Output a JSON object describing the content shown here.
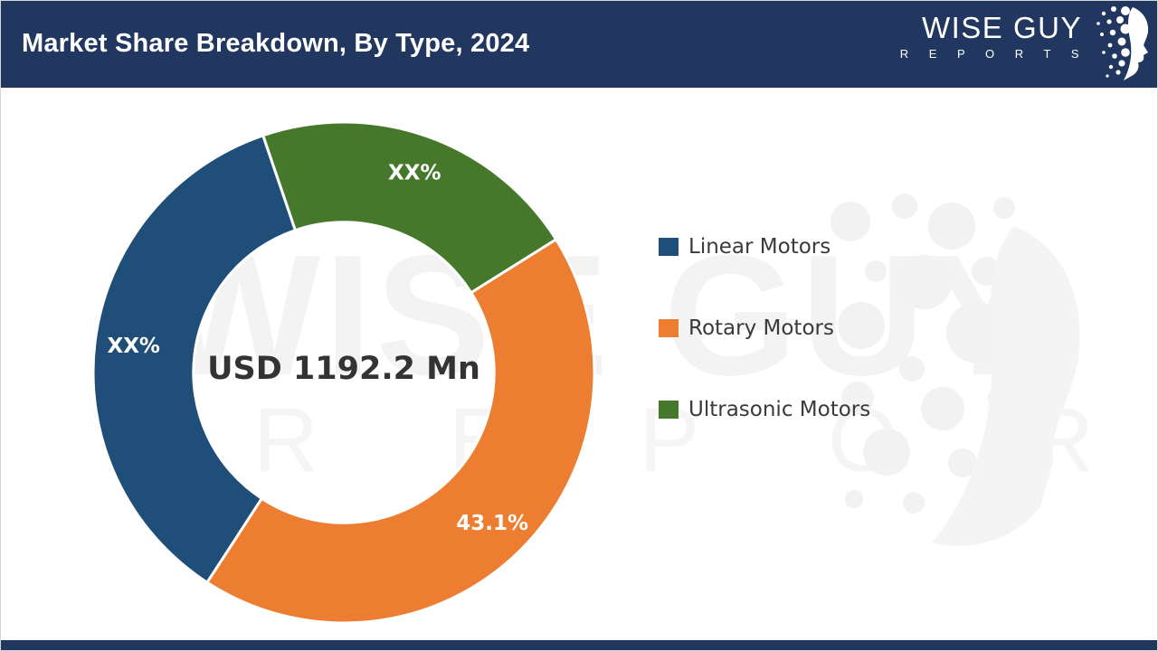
{
  "header": {
    "title": "Market Share Breakdown, By Type, 2024",
    "logo": {
      "wordmark": "WISE GUY",
      "sub": "R E P O R T S"
    }
  },
  "watermark": {
    "wordmark": "WISE GUY",
    "sub": "R E P O R T S"
  },
  "colors": {
    "header_bg": "#21375f",
    "footer_bg": "#21375f",
    "title_text": "#ffffff",
    "center_text": "#333333",
    "legend_text": "#3a3a3a",
    "watermark": "#f3f3f3",
    "slice_label_text": "#ffffff"
  },
  "chart_data": {
    "type": "pie",
    "subtype": "donut",
    "title": "Market Share Breakdown, By Type, 2024",
    "center_label": "USD 1192.2 Mn",
    "categories": [
      "Linear Motors",
      "Rotary Motors",
      "Ultrasonic Motors"
    ],
    "values": [
      35.6,
      43.1,
      21.3
    ],
    "slice_labels": [
      "XX%",
      "43.1%",
      "XX%"
    ],
    "colors": [
      "#1f4e79",
      "#ed7d31",
      "#45782b"
    ],
    "start_angle_deg": 108.8,
    "direction": "counterclockwise",
    "donut_hole_ratio": 0.6,
    "legend_position": "right"
  }
}
